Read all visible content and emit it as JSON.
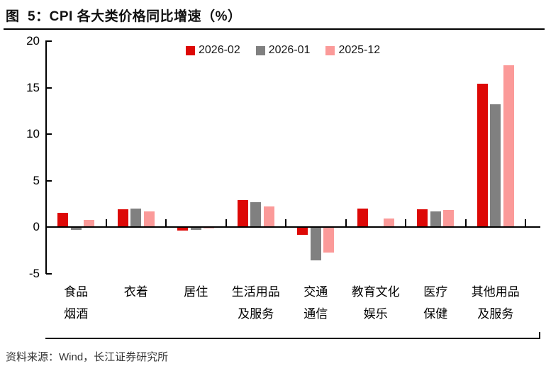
{
  "figure": {
    "title": "图  5：CPI 各大类价格同比增速（%）",
    "source": "资料来源：Wind，长江证券研究所"
  },
  "chart_data": {
    "type": "bar",
    "title": "CPI 各大类价格同比增速（%）",
    "categories": [
      "食品烟酒",
      "衣着",
      "居住",
      "生活用品及服务",
      "交通通信",
      "教育文化娱乐",
      "医疗保健",
      "其他用品及服务"
    ],
    "category_label_lines": [
      [
        "食品",
        "烟酒"
      ],
      [
        "衣着"
      ],
      [
        "居住"
      ],
      [
        "生活用品",
        "及服务"
      ],
      [
        "交通",
        "通信"
      ],
      [
        "教育文化",
        "娱乐"
      ],
      [
        "医疗",
        "保健"
      ],
      [
        "其他用品",
        "及服务"
      ]
    ],
    "series": [
      {
        "name": "2026-02",
        "color": "#dd0806",
        "values": [
          1.5,
          1.9,
          -0.3,
          2.9,
          -0.8,
          2.0,
          1.9,
          15.4
        ]
      },
      {
        "name": "2026-01",
        "color": "#808080",
        "values": [
          -0.2,
          2.0,
          -0.2,
          2.7,
          -3.5,
          0.0,
          1.7,
          13.2
        ]
      },
      {
        "name": "2025-12",
        "color": "#fb9a99",
        "values": [
          0.8,
          1.7,
          -0.1,
          2.2,
          -2.7,
          0.9,
          1.8,
          17.4
        ]
      }
    ],
    "ylim": [
      -5,
      20
    ],
    "yticks": [
      20,
      15,
      10,
      5,
      0,
      -5
    ],
    "legend_position": "top-center",
    "grid": false,
    "axis_color": "#000000"
  }
}
